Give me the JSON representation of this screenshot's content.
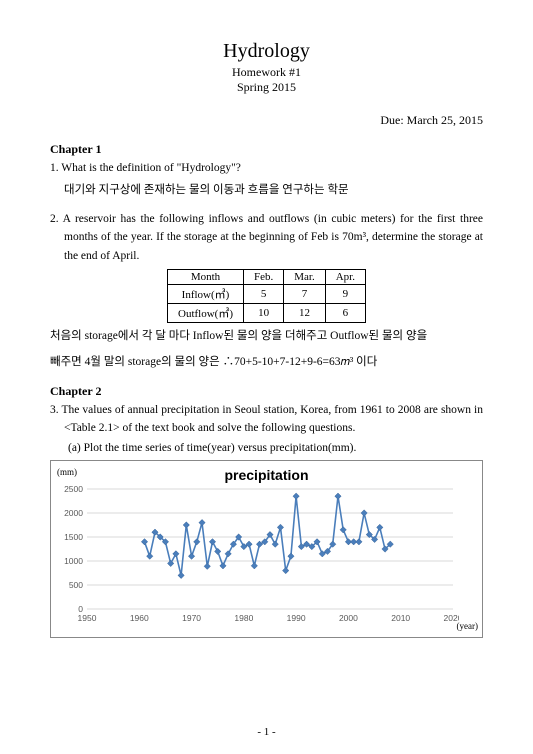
{
  "header": {
    "title": "Hydrology",
    "hw": "Homework #1",
    "term": "Spring 2015",
    "due": "Due: March 25, 2015"
  },
  "ch1": {
    "label": "Chapter 1",
    "q1_num": "1.",
    "q1_text": " What is the definition of \"Hydrology\"?",
    "q1_ans": "대기와 지구상에 존재하는 물의 이동과 흐름을 연구하는 학문",
    "q2_num": "2.",
    "q2_line1": " A reservoir has the following inflows and outflows (in cubic meters) for the first three months of the year. If the storage at the beginning of Feb is 70m³, determine the storage at the end of April.",
    "table": {
      "headers": [
        "Month",
        "Feb.",
        "Mar.",
        "Apr."
      ],
      "rows": [
        [
          "Inflow(㎥)",
          "5",
          "7",
          "9"
        ],
        [
          "Outflow(㎥)",
          "10",
          "12",
          "6"
        ]
      ]
    },
    "q2_ans1": "처음의 storage에서 각 달 마다 Inflow된 물의 양을 더해주고 Outflow된 물의 양을",
    "q2_ans2": "빼주면 4월 말의 storage의 물의 양은   ∴70+5-10+7-12+9-6=63𝑚³ 이다"
  },
  "ch2": {
    "label": "Chapter 2",
    "q3_num": "3.",
    "q3_text": " The values of annual precipitation in Seoul station, Korea, from 1961 to 2008 are shown in <Table 2.1> of the text book and solve the following questions.",
    "q3a": "(a) Plot the time series of time(year) versus precipitation(mm)."
  },
  "chart": {
    "title": "precipitation",
    "yunit": "(mm)",
    "xunit": "(year)",
    "type": "line",
    "marker": "diamond",
    "line_color": "#4a7ebb",
    "marker_color": "#4a7ebb",
    "grid_color": "#d9d9d9",
    "background_color": "#ffffff",
    "title_fontsize": 14,
    "axis_fontsize": 8.5,
    "line_width": 1.6,
    "marker_size": 3.2,
    "xlim": [
      1950,
      2020
    ],
    "ylim": [
      0,
      2500
    ],
    "xtick_step": 10,
    "ytick_step": 500,
    "xticks": [
      1950,
      1960,
      1970,
      1980,
      1990,
      2000,
      2010,
      2020
    ],
    "yticks": [
      0,
      500,
      1000,
      1500,
      2000,
      2500
    ],
    "years": [
      1961,
      1962,
      1963,
      1964,
      1965,
      1966,
      1967,
      1968,
      1969,
      1970,
      1971,
      1972,
      1973,
      1974,
      1975,
      1976,
      1977,
      1978,
      1979,
      1980,
      1981,
      1982,
      1983,
      1984,
      1985,
      1986,
      1987,
      1988,
      1989,
      1990,
      1991,
      1992,
      1993,
      1994,
      1995,
      1996,
      1997,
      1998,
      1999,
      2000,
      2001,
      2002,
      2003,
      2004,
      2005,
      2006,
      2007,
      2008
    ],
    "values": [
      1400,
      1100,
      1600,
      1500,
      1400,
      950,
      1150,
      700,
      1750,
      1100,
      1400,
      1800,
      890,
      1400,
      1200,
      900,
      1150,
      1350,
      1500,
      1300,
      1350,
      900,
      1350,
      1400,
      1550,
      1350,
      1700,
      800,
      1100,
      2350,
      1300,
      1350,
      1300,
      1400,
      1150,
      1200,
      1350,
      2350,
      1650,
      1400,
      1400,
      1400,
      2000,
      1550,
      1450,
      1700,
      1250,
      1350
    ]
  },
  "footer": "- 1 -"
}
